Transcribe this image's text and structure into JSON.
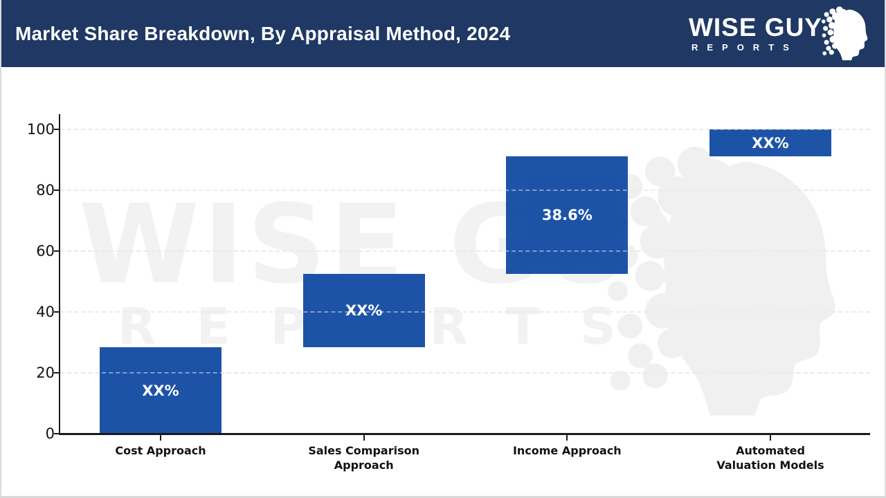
{
  "header": {
    "title": "Market Share Breakdown, By Appraisal Method, 2024",
    "bg_color": "#1f3864",
    "logo": {
      "brand_line1": "WISE GUY",
      "brand_line2": "REPORTS"
    }
  },
  "watermark": {
    "line1": "WISE GUY",
    "line2": "REPORTS"
  },
  "chart_data": {
    "type": "bar",
    "subtype": "floating-waterfall",
    "title": "Market Share Breakdown, By Appraisal Method, 2024",
    "categories": [
      "Cost Approach",
      "Sales Comparison Approach",
      "Income Approach",
      "Automated Valuation Models"
    ],
    "bars": [
      {
        "label_lines": [
          "Cost Approach"
        ],
        "start": 0,
        "end": 28.4,
        "value_label": "XX%"
      },
      {
        "label_lines": [
          "Sales Comparison",
          "Approach"
        ],
        "start": 28.4,
        "end": 52.5,
        "value_label": "XX%"
      },
      {
        "label_lines": [
          "Income Approach"
        ],
        "start": 52.5,
        "end": 91.1,
        "value_label": "38.6%"
      },
      {
        "label_lines": [
          "Automated",
          "Valuation Models"
        ],
        "start": 91.1,
        "end": 100,
        "value_label": "XX%"
      }
    ],
    "bar_color": "#0c47a1",
    "value_label_color": "#ffffff",
    "yticks": [
      0,
      20,
      40,
      60,
      80,
      100
    ],
    "ylim": [
      0,
      105
    ],
    "grid": {
      "style": "dashed",
      "color": "#d9d9d9",
      "axis": "y"
    },
    "axis_color": "#1a1a1a",
    "legend": null
  }
}
